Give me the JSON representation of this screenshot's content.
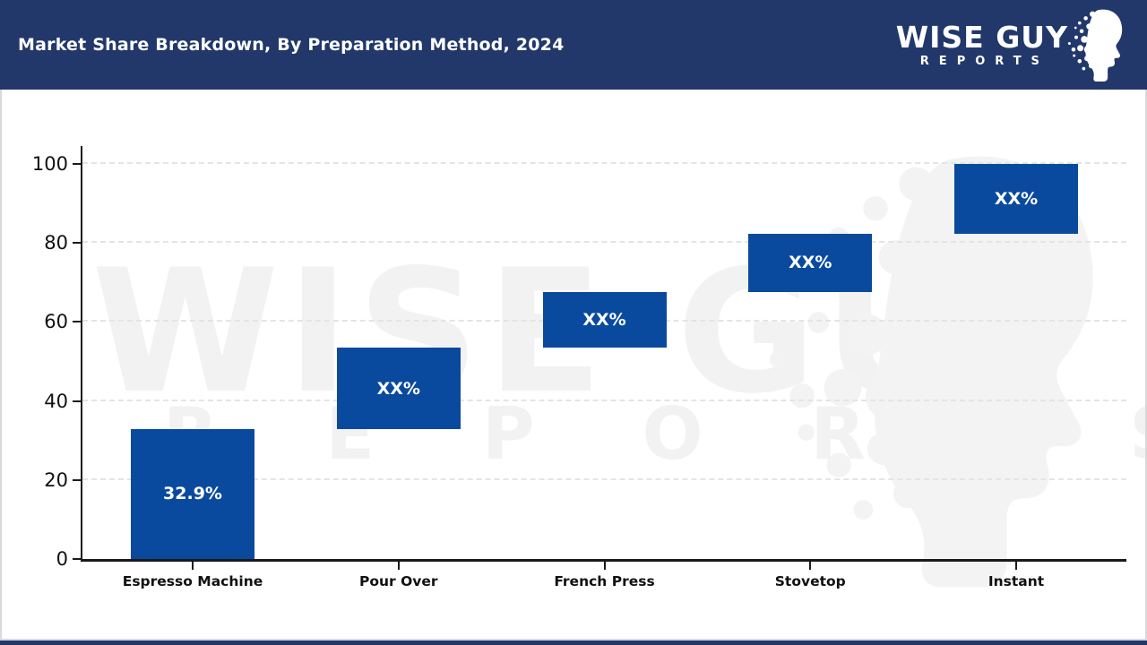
{
  "header": {
    "title": "Market Share Breakdown, By Preparation Method, 2024",
    "logo": {
      "line1": "WISE GUY",
      "line2": "REPORTS"
    }
  },
  "watermark": {
    "line1": "WISE GUY",
    "line2": "R E P O R T S"
  },
  "chart_data": {
    "type": "bar",
    "subtype": "waterfall",
    "title": "Market Share Breakdown, By Preparation Method, 2024",
    "categories": [
      "Espresso Machine",
      "Pour Over",
      "French Press",
      "Stovetop",
      "Instant"
    ],
    "segments": [
      {
        "start": 0,
        "end": 32.9,
        "label": "32.9%"
      },
      {
        "start": 32.9,
        "end": 53.4,
        "label": "XX%"
      },
      {
        "start": 53.4,
        "end": 67.6,
        "label": "XX%"
      },
      {
        "start": 67.6,
        "end": 82.4,
        "label": "XX%"
      },
      {
        "start": 82.4,
        "end": 100.0,
        "label": "XX%"
      }
    ],
    "yticks": [
      0,
      20,
      40,
      60,
      80,
      100
    ],
    "ylim": [
      0,
      105.2
    ],
    "xlabel": "",
    "ylabel": "",
    "grid": true,
    "gridstyle": "dashed",
    "legend": "none",
    "bar_color": "#0a4a9e",
    "bar_label_color": "#ffffff",
    "axis_color": "#1a1a1a",
    "grid_color": "#e4e4e4"
  },
  "colors": {
    "header_bg": "#22386a",
    "footer_bg": "#22386a",
    "figure_border": "#d9d9d9",
    "watermark": "#f2f2f2",
    "title_text": "#ffffff"
  }
}
